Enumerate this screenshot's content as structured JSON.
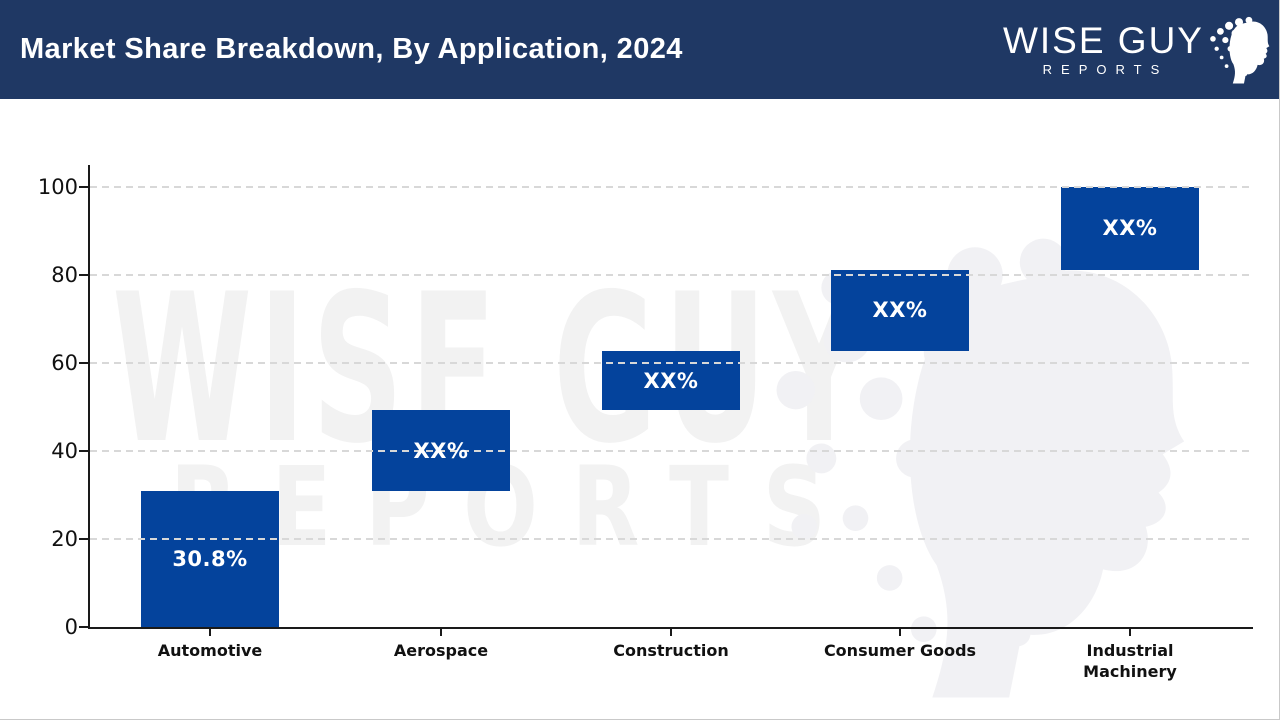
{
  "header": {
    "title": "Market Share Breakdown, By Application, 2024",
    "logo": {
      "name": "WISE GUY",
      "subtitle": "REPORTS"
    }
  },
  "watermark": {
    "line1": "WISE GUY",
    "line2": "REPORTS"
  },
  "colors": {
    "header_bg": "#1f3864",
    "bar_blue": "#04439c",
    "grid_gray": "#d8d8d8",
    "axis_black": "#1a1a1a",
    "watermark_gray": "#f2f2f2",
    "bar_label_white": "#ffffff"
  },
  "chart_data": {
    "type": "bar",
    "subtype": "waterfall",
    "title": "Market Share Breakdown, By Application, 2024",
    "xlabel": "",
    "ylabel": "",
    "ylim": [
      0,
      105
    ],
    "yticks": [
      0,
      20,
      40,
      60,
      80,
      100
    ],
    "grid": "horizontal dashed",
    "legend": "none",
    "categories": [
      "Automotive",
      "Aerospace",
      "Construction",
      "Consumer Goods",
      "Industrial\nMachinery"
    ],
    "segments": [
      {
        "category": "Automotive",
        "start": 0,
        "end": 30.8,
        "label": "30.8%"
      },
      {
        "category": "Aerospace",
        "start": 30.8,
        "end": 49.3,
        "label": "XX%"
      },
      {
        "category": "Construction",
        "start": 49.3,
        "end": 62.7,
        "label": "XX%"
      },
      {
        "category": "Consumer Goods",
        "start": 62.7,
        "end": 81.2,
        "label": "XX%"
      },
      {
        "category": "Industrial Machinery",
        "start": 81.2,
        "end": 100,
        "label": "XX%"
      }
    ]
  }
}
